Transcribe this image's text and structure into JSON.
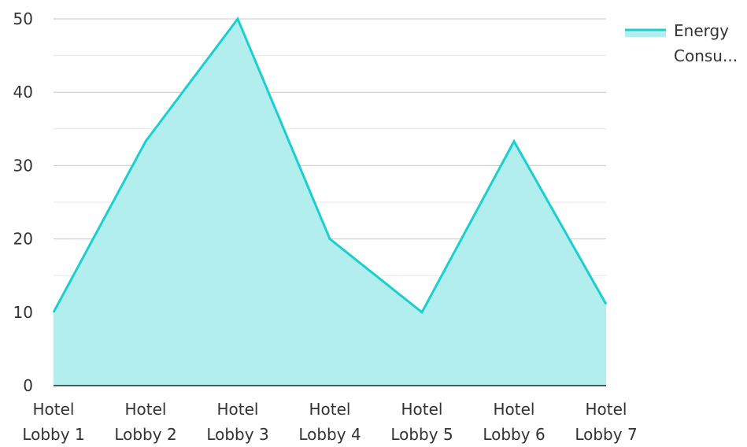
{
  "chart_data": {
    "type": "area",
    "categories": [
      "Hotel Lobby 1",
      "Hotel Lobby 2",
      "Hotel Lobby 3",
      "Hotel Lobby 4",
      "Hotel Lobby 5",
      "Hotel Lobby 6",
      "Hotel Lobby 7"
    ],
    "category_lines": [
      [
        "Hotel",
        "Lobby 1"
      ],
      [
        "Hotel",
        "Lobby 2"
      ],
      [
        "Hotel",
        "Lobby 3"
      ],
      [
        "Hotel",
        "Lobby 4"
      ],
      [
        "Hotel",
        "Lobby 5"
      ],
      [
        "Hotel",
        "Lobby 6"
      ],
      [
        "Hotel",
        "Lobby 7"
      ]
    ],
    "series": [
      {
        "name": "Energy Consu...",
        "values": [
          10,
          33.3,
          50,
          20,
          10,
          33.3,
          11.1
        ],
        "line_color": "#1ccfcf",
        "fill_color": "#b2eeee"
      }
    ],
    "yticks": [
      0,
      10,
      20,
      30,
      40,
      50
    ],
    "ylim": [
      0,
      50
    ],
    "grid": true,
    "legend": {
      "position": "top-right",
      "label_lines": [
        "Energy",
        "Consu..."
      ]
    },
    "title": "",
    "xlabel": "",
    "ylabel": ""
  }
}
